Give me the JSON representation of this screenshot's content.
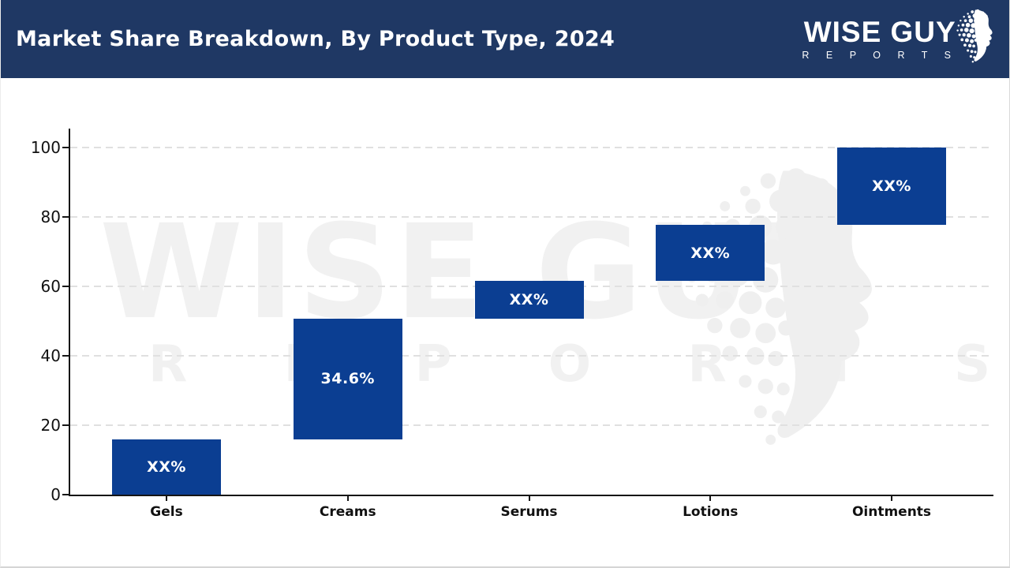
{
  "header": {
    "title": "Market Share Breakdown, By Product Type, 2024",
    "logo": {
      "wordmark": "WISE GUY",
      "subtitle": "R E P O R T S"
    }
  },
  "watermark": {
    "wordmark": "WISE GUY",
    "subtitle": "R E P O R T S"
  },
  "chart_data": {
    "type": "bar",
    "subtype": "waterfall",
    "title": "Market Share Breakdown, By Product Type, 2024",
    "categories": [
      "Gels",
      "Creams",
      "Serums",
      "Lotions",
      "Ointments"
    ],
    "segments": [
      {
        "category": "Gels",
        "start": 0,
        "end": 16,
        "value_label": "XX%"
      },
      {
        "category": "Creams",
        "start": 16,
        "end": 50.6,
        "value_label": "34.6%"
      },
      {
        "category": "Serums",
        "start": 50.6,
        "end": 61.5,
        "value_label": "XX%"
      },
      {
        "category": "Lotions",
        "start": 61.5,
        "end": 77.7,
        "value_label": "XX%"
      },
      {
        "category": "Ointments",
        "start": 77.7,
        "end": 100,
        "value_label": "XX%"
      }
    ],
    "xlabel": "",
    "ylabel": "",
    "ylim": [
      0,
      100
    ],
    "yticks": [
      0,
      20,
      40,
      60,
      80,
      100
    ],
    "grid": "horizontal-dashed",
    "legend": "none",
    "bar_color": "#0b3e92",
    "bar_label_color": "#ffffff"
  },
  "colors": {
    "header_bg": "#1f3864",
    "bar": "#0b3e92",
    "axis": "#151515",
    "gridline": "#e0e0e0",
    "watermark": "#f1f1f1",
    "page_bg": "#ffffff"
  }
}
